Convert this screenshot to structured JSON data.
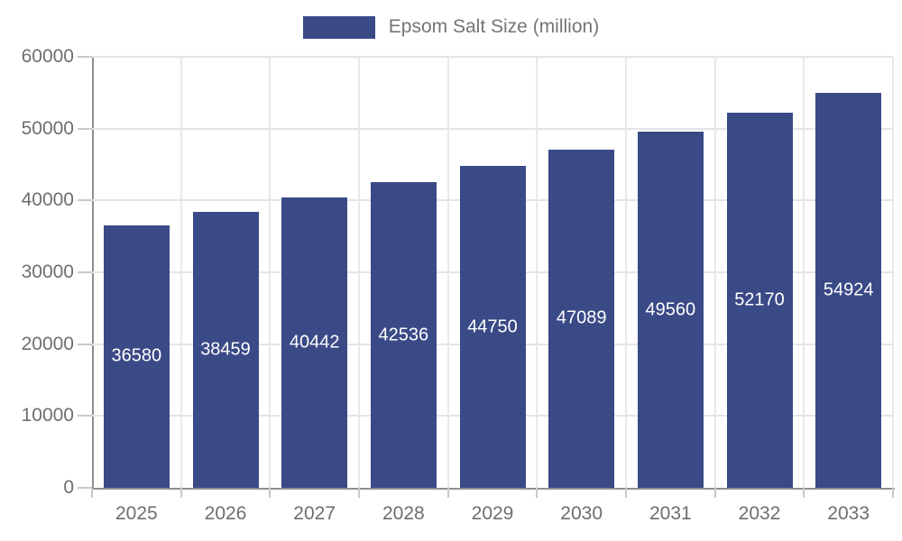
{
  "chart_data": {
    "type": "bar",
    "title": "",
    "xlabel": "",
    "ylabel": "",
    "categories": [
      "2025",
      "2026",
      "2027",
      "2028",
      "2029",
      "2030",
      "2031",
      "2032",
      "2033"
    ],
    "series": [
      {
        "name": "Epsom Salt Size (million)",
        "color": "#3a4a87",
        "values": [
          36580,
          38459,
          40442,
          42536,
          44750,
          47089,
          49560,
          52170,
          54924
        ]
      }
    ],
    "ylim": [
      0,
      60000
    ],
    "yticks": [
      0,
      10000,
      20000,
      30000,
      40000,
      50000,
      60000
    ],
    "grid": true,
    "legend_position": "top-center",
    "value_labels": "inside-center",
    "colors": {
      "bar": "#3a4a87",
      "value_label_text": "#ffffff",
      "axis_text": "#6e6e6e",
      "legend_text": "#757575",
      "axis_line": "#8e8e8e",
      "gridline": "#e4e4e8",
      "tick_mark": "#c9c9c9",
      "background": "#ffffff"
    }
  }
}
